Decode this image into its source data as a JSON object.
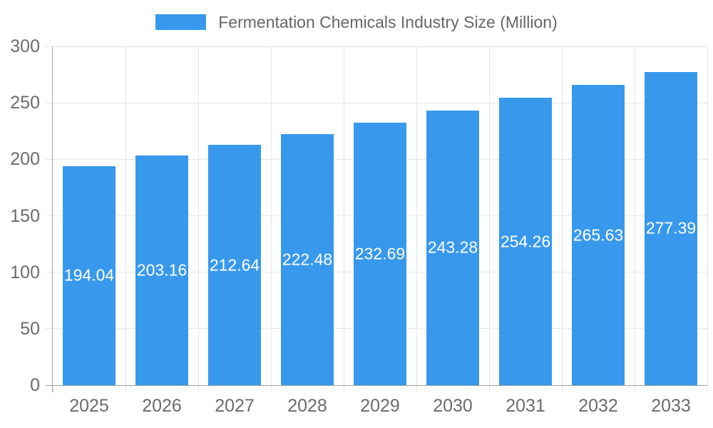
{
  "chart_data": {
    "type": "bar",
    "title": "Fermentation Chemicals Industry Size (Million)",
    "categories": [
      "2025",
      "2026",
      "2027",
      "2028",
      "2029",
      "2030",
      "2031",
      "2032",
      "2033"
    ],
    "values": [
      194.04,
      203.16,
      212.64,
      222.48,
      232.69,
      243.28,
      254.26,
      265.63,
      277.39
    ],
    "value_labels": [
      "194.04",
      "203.16",
      "212.64",
      "222.48",
      "232.69",
      "243.28",
      "254.26",
      "265.63",
      "277.39"
    ],
    "xlabel": "",
    "ylabel": "",
    "ylim": [
      0,
      300
    ],
    "yticks": [
      0,
      50,
      100,
      150,
      200,
      250,
      300
    ],
    "grid": true,
    "legend_position": "top",
    "colors": {
      "bar": "#3899ec",
      "bar_label_text": "#ffffff",
      "axis_text": "#6b6b6b",
      "legend_text": "#666666",
      "gridline": "#e6e6e6",
      "axis_line": "#a3a3a3"
    }
  }
}
